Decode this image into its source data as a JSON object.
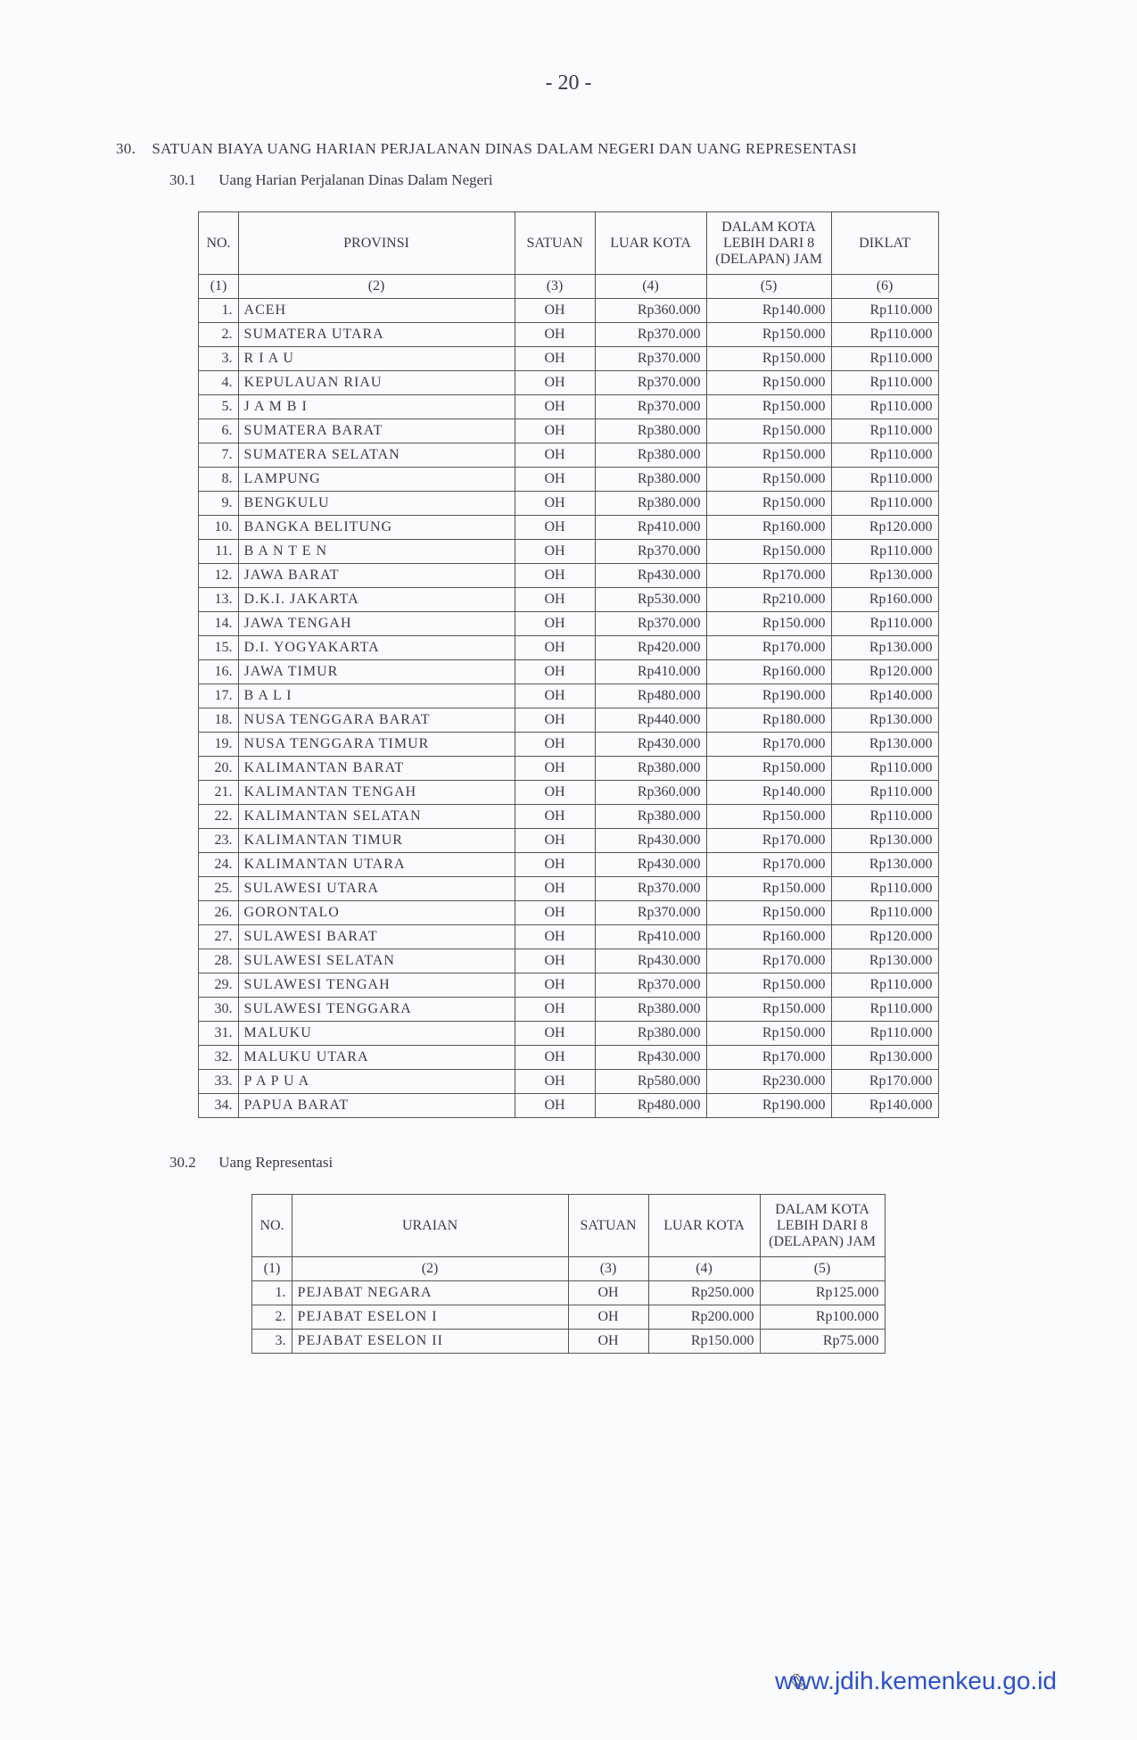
{
  "page_number": "- 20 -",
  "heading_num": "30.",
  "heading_text": "SATUAN BIAYA UANG HARIAN PERJALANAN DINAS DALAM NEGERI DAN UANG REPRESENTASI",
  "sub1_num": "30.1",
  "sub1_text": "Uang Harian Perjalanan Dinas Dalam Negeri",
  "sub2_num": "30.2",
  "sub2_text": "Uang Representasi",
  "t1": {
    "h_no": "NO.",
    "h_prov": "PROVINSI",
    "h_sat": "SATUAN",
    "h_lk": "LUAR KOTA",
    "h_dk": "DALAM KOTA LEBIH DARI 8 (DELAPAN) JAM",
    "h_dik": "DIKLAT",
    "s_no": "(1)",
    "s_prov": "(2)",
    "s_sat": "(3)",
    "s_lk": "(4)",
    "s_dk": "(5)",
    "s_dik": "(6)",
    "rows": [
      {
        "no": "1.",
        "prov": "ACEH",
        "sat": "OH",
        "lk": "Rp360.000",
        "dk": "Rp140.000",
        "dik": "Rp110.000"
      },
      {
        "no": "2.",
        "prov": "SUMATERA  UTARA",
        "sat": "OH",
        "lk": "Rp370.000",
        "dk": "Rp150.000",
        "dik": "Rp110.000"
      },
      {
        "no": "3.",
        "prov": "R I A U",
        "sat": "OH",
        "lk": "Rp370.000",
        "dk": "Rp150.000",
        "dik": "Rp110.000"
      },
      {
        "no": "4.",
        "prov": "KEPULAUAN  RIAU",
        "sat": "OH",
        "lk": "Rp370.000",
        "dk": "Rp150.000",
        "dik": "Rp110.000"
      },
      {
        "no": "5.",
        "prov": "J A M B I",
        "sat": "OH",
        "lk": "Rp370.000",
        "dk": "Rp150.000",
        "dik": "Rp110.000"
      },
      {
        "no": "6.",
        "prov": "SUMATERA  BARAT",
        "sat": "OH",
        "lk": "Rp380.000",
        "dk": "Rp150.000",
        "dik": "Rp110.000"
      },
      {
        "no": "7.",
        "prov": "SUMATERA  SELATAN",
        "sat": "OH",
        "lk": "Rp380.000",
        "dk": "Rp150.000",
        "dik": "Rp110.000"
      },
      {
        "no": "8.",
        "prov": "LAMPUNG",
        "sat": "OH",
        "lk": "Rp380.000",
        "dk": "Rp150.000",
        "dik": "Rp110.000"
      },
      {
        "no": "9.",
        "prov": "BENGKULU",
        "sat": "OH",
        "lk": "Rp380.000",
        "dk": "Rp150.000",
        "dik": "Rp110.000"
      },
      {
        "no": "10.",
        "prov": "BANGKA  BELITUNG",
        "sat": "OH",
        "lk": "Rp410.000",
        "dk": "Rp160.000",
        "dik": "Rp120.000"
      },
      {
        "no": "11.",
        "prov": "B A N T E N",
        "sat": "OH",
        "lk": "Rp370.000",
        "dk": "Rp150.000",
        "dik": "Rp110.000"
      },
      {
        "no": "12.",
        "prov": "JAWA  BARAT",
        "sat": "OH",
        "lk": "Rp430.000",
        "dk": "Rp170.000",
        "dik": "Rp130.000"
      },
      {
        "no": "13.",
        "prov": "D.K.I.  JAKARTA",
        "sat": "OH",
        "lk": "Rp530.000",
        "dk": "Rp210.000",
        "dik": "Rp160.000"
      },
      {
        "no": "14.",
        "prov": "JAWA  TENGAH",
        "sat": "OH",
        "lk": "Rp370.000",
        "dk": "Rp150.000",
        "dik": "Rp110.000"
      },
      {
        "no": "15.",
        "prov": "D.I. YOGYAKARTA",
        "sat": "OH",
        "lk": "Rp420.000",
        "dk": "Rp170.000",
        "dik": "Rp130.000"
      },
      {
        "no": "16.",
        "prov": "JAWA  TIMUR",
        "sat": "OH",
        "lk": "Rp410.000",
        "dk": "Rp160.000",
        "dik": "Rp120.000"
      },
      {
        "no": "17.",
        "prov": "B A L I",
        "sat": "OH",
        "lk": "Rp480.000",
        "dk": "Rp190.000",
        "dik": "Rp140.000"
      },
      {
        "no": "18.",
        "prov": "NUSA  TENGGARA  BARAT",
        "sat": "OH",
        "lk": "Rp440.000",
        "dk": "Rp180.000",
        "dik": "Rp130.000"
      },
      {
        "no": "19.",
        "prov": "NUSA  TENGGARA  TIMUR",
        "sat": "OH",
        "lk": "Rp430.000",
        "dk": "Rp170.000",
        "dik": "Rp130.000"
      },
      {
        "no": "20.",
        "prov": "KALIMANTAN  BARAT",
        "sat": "OH",
        "lk": "Rp380.000",
        "dk": "Rp150.000",
        "dik": "Rp110.000"
      },
      {
        "no": "21.",
        "prov": "KALIMANTAN  TENGAH",
        "sat": "OH",
        "lk": "Rp360.000",
        "dk": "Rp140.000",
        "dik": "Rp110.000"
      },
      {
        "no": "22.",
        "prov": "KALIMANTAN  SELATAN",
        "sat": "OH",
        "lk": "Rp380.000",
        "dk": "Rp150.000",
        "dik": "Rp110.000"
      },
      {
        "no": "23.",
        "prov": "KALIMANTAN  TIMUR",
        "sat": "OH",
        "lk": "Rp430.000",
        "dk": "Rp170.000",
        "dik": "Rp130.000"
      },
      {
        "no": "24.",
        "prov": "KALIMANTAN  UTARA",
        "sat": "OH",
        "lk": "Rp430.000",
        "dk": "Rp170.000",
        "dik": "Rp130.000"
      },
      {
        "no": "25.",
        "prov": "SULAWESI  UTARA",
        "sat": "OH",
        "lk": "Rp370.000",
        "dk": "Rp150.000",
        "dik": "Rp110.000"
      },
      {
        "no": "26.",
        "prov": "GORONTALO",
        "sat": "OH",
        "lk": "Rp370.000",
        "dk": "Rp150.000",
        "dik": "Rp110.000"
      },
      {
        "no": "27.",
        "prov": "SULAWESI  BARAT",
        "sat": "OH",
        "lk": "Rp410.000",
        "dk": "Rp160.000",
        "dik": "Rp120.000"
      },
      {
        "no": "28.",
        "prov": "SULAWESI  SELATAN",
        "sat": "OH",
        "lk": "Rp430.000",
        "dk": "Rp170.000",
        "dik": "Rp130.000"
      },
      {
        "no": "29.",
        "prov": "SULAWESI  TENGAH",
        "sat": "OH",
        "lk": "Rp370.000",
        "dk": "Rp150.000",
        "dik": "Rp110.000"
      },
      {
        "no": "30.",
        "prov": "SULAWESI  TENGGARA",
        "sat": "OH",
        "lk": "Rp380.000",
        "dk": "Rp150.000",
        "dik": "Rp110.000"
      },
      {
        "no": "31.",
        "prov": "MALUKU",
        "sat": "OH",
        "lk": "Rp380.000",
        "dk": "Rp150.000",
        "dik": "Rp110.000"
      },
      {
        "no": "32.",
        "prov": "MALUKU  UTARA",
        "sat": "OH",
        "lk": "Rp430.000",
        "dk": "Rp170.000",
        "dik": "Rp130.000"
      },
      {
        "no": "33.",
        "prov": "P A P U A",
        "sat": "OH",
        "lk": "Rp580.000",
        "dk": "Rp230.000",
        "dik": "Rp170.000"
      },
      {
        "no": "34.",
        "prov": "PAPUA  BARAT",
        "sat": "OH",
        "lk": "Rp480.000",
        "dk": "Rp190.000",
        "dik": "Rp140.000"
      }
    ]
  },
  "t2": {
    "h_no": "NO.",
    "h_ur": "URAIAN",
    "h_sat": "SATUAN",
    "h_lk": "LUAR KOTA",
    "h_dk": "DALAM KOTA LEBIH DARI 8 (DELAPAN) JAM",
    "s_no": "(1)",
    "s_ur": "(2)",
    "s_sat": "(3)",
    "s_lk": "(4)",
    "s_dk": "(5)",
    "rows": [
      {
        "no": "1.",
        "ur": "PEJABAT NEGARA",
        "sat": "OH",
        "lk": "Rp250.000",
        "dk": "Rp125.000"
      },
      {
        "no": "2.",
        "ur": "PEJABAT ESELON I",
        "sat": "OH",
        "lk": "Rp200.000",
        "dk": "Rp100.000"
      },
      {
        "no": "3.",
        "ur": "PEJABAT ESELON II",
        "sat": "OH",
        "lk": "Rp150.000",
        "dk": "Rp75.000"
      }
    ]
  },
  "watermark": "www.jdih.kemenkeu.go.id"
}
